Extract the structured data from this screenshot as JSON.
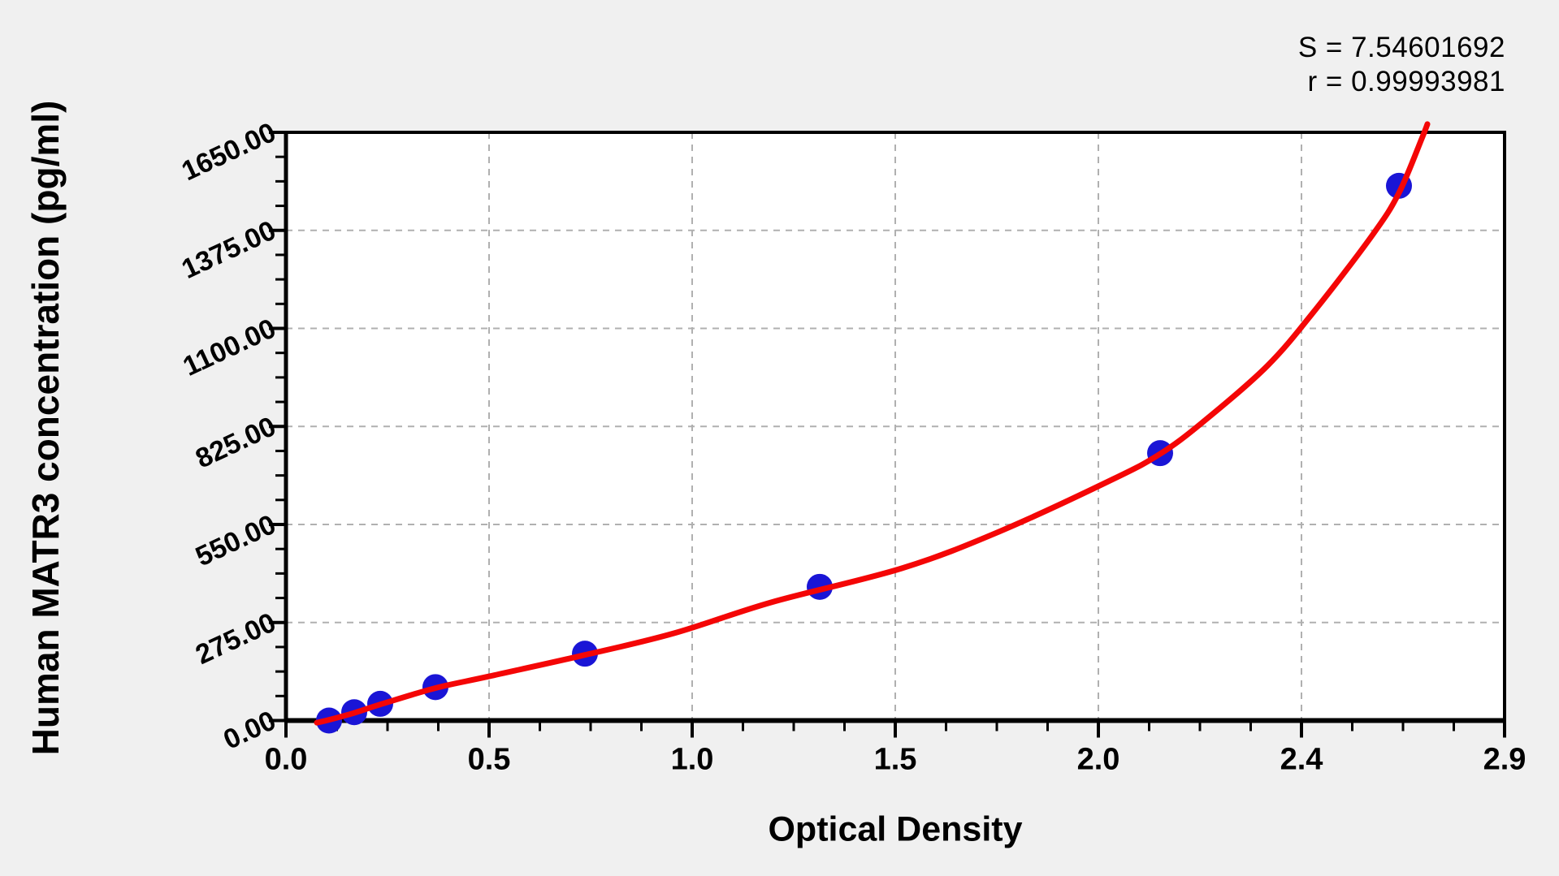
{
  "chart_data": {
    "type": "scatter",
    "title": "",
    "xlabel": "Optical Density",
    "ylabel": "Human MATR3 concentration (pg/ml)",
    "stats": {
      "s": "S = 7.54601692",
      "r": "r = 0.99993981"
    },
    "xlim": [
      0,
      3.0
    ],
    "ylim": [
      0,
      1650
    ],
    "x_ticks": {
      "labels": [
        "0.0",
        "0.5",
        "1.0",
        "1.5",
        "2.0",
        "2.4",
        "2.9"
      ],
      "minors_per_interval": 3
    },
    "y_ticks": {
      "values": [
        0,
        275,
        550,
        825,
        1100,
        1375,
        1650
      ],
      "labels": [
        "0.00",
        "275.00",
        "550.00",
        "825.00",
        "1100.00",
        "1375.00",
        "1650.00"
      ],
      "minors_per_interval": 3,
      "label_rotation_deg": -25
    },
    "grid": "dashed-major",
    "legend": "none",
    "points": [
      {
        "od": 0.106,
        "conc": 0
      },
      {
        "od": 0.168,
        "conc": 23.4
      },
      {
        "od": 0.232,
        "conc": 46.9
      },
      {
        "od": 0.368,
        "conc": 93.8
      },
      {
        "od": 0.736,
        "conc": 187.5
      },
      {
        "od": 1.314,
        "conc": 375
      },
      {
        "od": 2.152,
        "conc": 750
      },
      {
        "od": 2.74,
        "conc": 1500
      }
    ],
    "curve": [
      [
        0.076,
        -6
      ],
      [
        0.106,
        2
      ],
      [
        0.17,
        22
      ],
      [
        0.232,
        45
      ],
      [
        0.368,
        91
      ],
      [
        0.5,
        124
      ],
      [
        0.736,
        184
      ],
      [
        0.956,
        245
      ],
      [
        1.196,
        332
      ],
      [
        1.516,
        427
      ],
      [
        1.756,
        530
      ],
      [
        2.036,
        677
      ],
      [
        2.152,
        748
      ],
      [
        2.256,
        836
      ],
      [
        2.416,
        995
      ],
      [
        2.536,
        1155
      ],
      [
        2.676,
        1364
      ],
      [
        2.74,
        1480
      ],
      [
        2.796,
        1632
      ],
      [
        2.81,
        1673
      ]
    ],
    "colors": {
      "figure_bg": "#f0f0f0",
      "plot_bg": "#ffffff",
      "axis": "#000000",
      "grid": "#b0b0b0",
      "point": "#1a15d6",
      "curve": "#f40606",
      "text": "#000000"
    }
  }
}
